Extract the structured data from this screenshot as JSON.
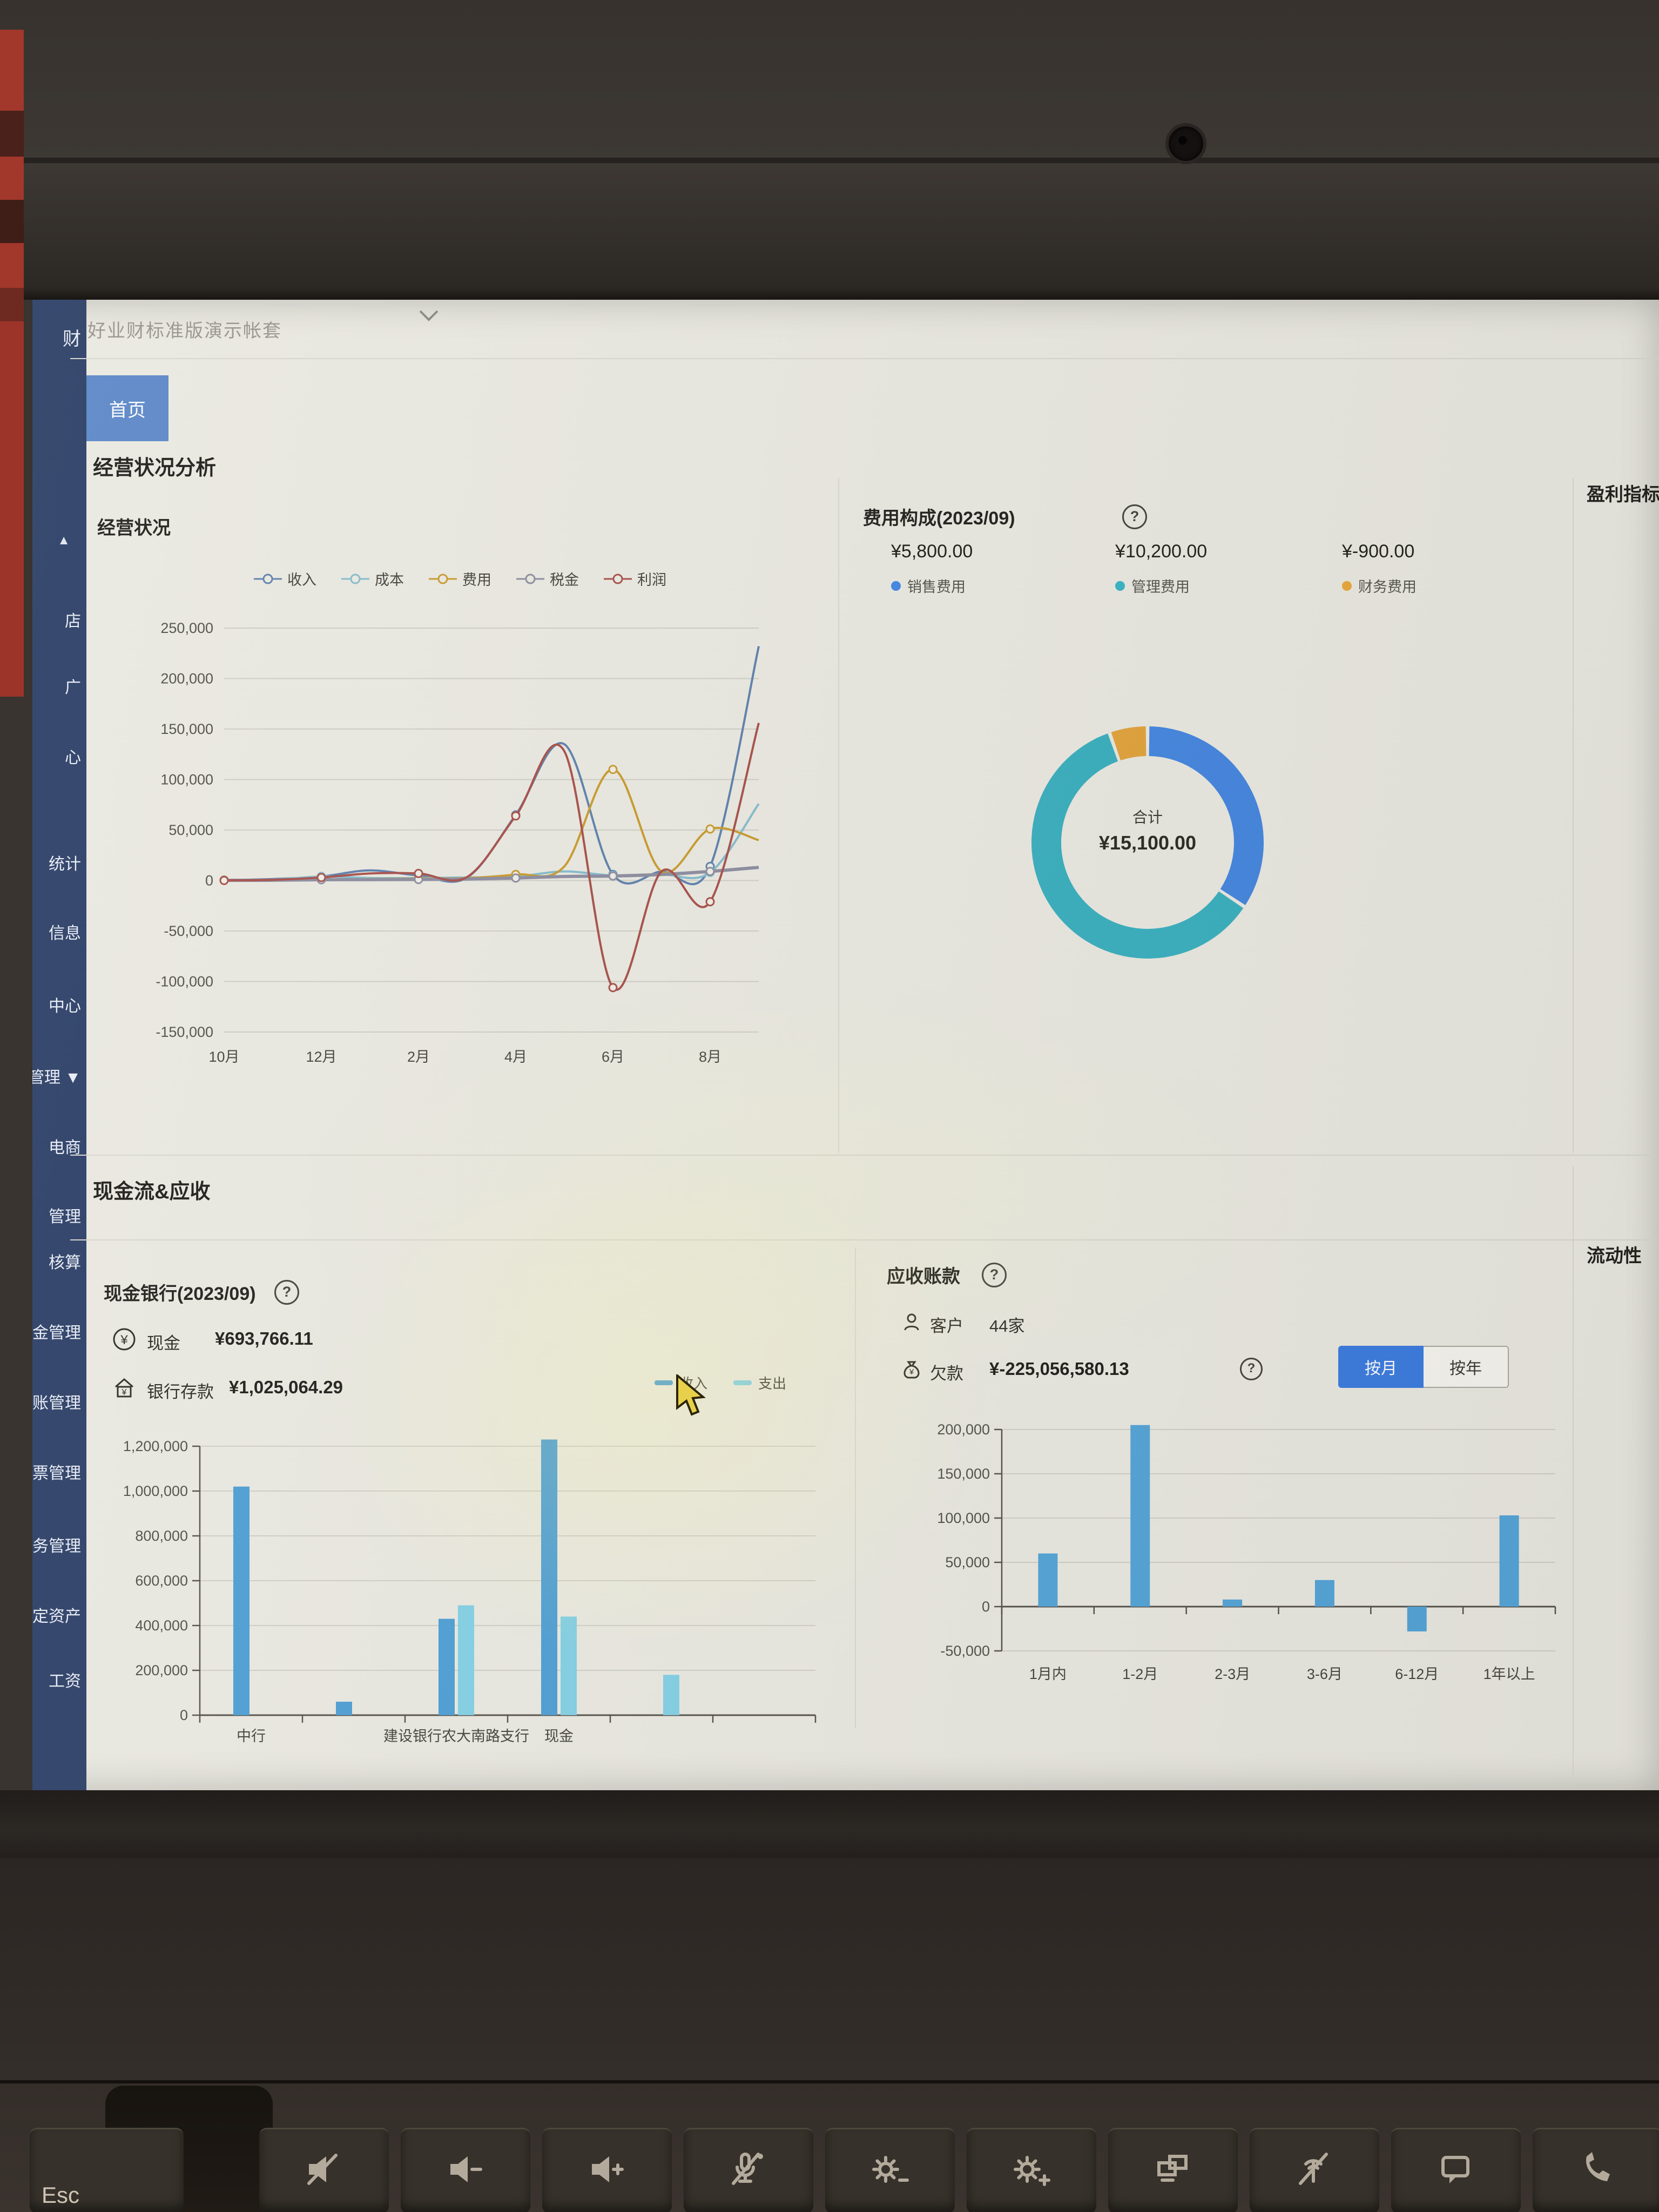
{
  "device": {
    "type": "laptop-photo",
    "keyboard_keys": [
      "Esc",
      "mute",
      "volume-down",
      "volume-up",
      "mic-mute",
      "brightness-down",
      "brightness-up",
      "display-toggle",
      "wireless-off",
      "message",
      "phone"
    ]
  },
  "header": {
    "account_name": "好业财标准版演示帐套",
    "home_tab": "首页"
  },
  "sidebar": {
    "logo_fragment": "财",
    "collapse_icon": "▲",
    "dropdown_index": 6,
    "items": [
      "店",
      "广",
      "心",
      "统计",
      "信息",
      "中心",
      "管理",
      "电商",
      "管理",
      "核算",
      "金管理",
      "账管理",
      "票管理",
      "税务管理",
      "固定资产",
      "工资"
    ]
  },
  "sections": {
    "analysis_title": "经营状况分析",
    "cashflow_title": "现金流&应收"
  },
  "expense_panel": {
    "help_icon": "?"
  },
  "cash_panel": {
    "cash_label": "现金",
    "cash_value": "¥693,766.11",
    "bank_label": "银行存款",
    "bank_value": "¥1,025,064.29"
  },
  "receivables_panel": {
    "customers_label": "客户",
    "customers_value": "44家",
    "debt_label": "欠款",
    "debt_value": "¥-225,056,580.13",
    "toggle_month": "按月",
    "toggle_year": "按年"
  },
  "stubs": {
    "profit": "盈利指标",
    "liquidity": "流动性"
  },
  "chart_data": [
    {
      "id": "operating_status",
      "type": "line",
      "title": "经营状况",
      "categories": [
        "10月",
        "11月",
        "12月",
        "1月",
        "2月",
        "3月",
        "4月",
        "5月",
        "6月",
        "7月",
        "8月",
        "9月"
      ],
      "label_every": 2,
      "ylim": [
        -150000,
        250000
      ],
      "y_step": 50000,
      "y_ticks": [
        "250,000",
        "200,000",
        "150,000",
        "100,000",
        "50,000",
        "0",
        "-50,000",
        "-100,000",
        "-150,000"
      ],
      "grid": true,
      "legend_position": "top",
      "series": [
        {
          "name": "收入",
          "color": "#5e81ad",
          "values": [
            500,
            1500,
            4000,
            10000,
            5000,
            3000,
            65000,
            135000,
            6000,
            9000,
            14000,
            232000
          ]
        },
        {
          "name": "成本",
          "color": "#85bccd",
          "values": [
            300,
            800,
            4000,
            2500,
            2500,
            3000,
            4000,
            9000,
            5000,
            6000,
            8000,
            76000
          ]
        },
        {
          "name": "费用",
          "color": "#c99b2e",
          "values": [
            400,
            600,
            1200,
            1500,
            2000,
            2500,
            6000,
            14000,
            110000,
            9000,
            51000,
            40000
          ]
        },
        {
          "name": "税金",
          "color": "#8d8da0",
          "width": 6,
          "values": [
            200,
            300,
            800,
            900,
            1000,
            1500,
            2500,
            4000,
            4500,
            6000,
            9000,
            13000
          ]
        },
        {
          "name": "利润",
          "color": "#a8504a",
          "values": [
            100,
            700,
            3000,
            7000,
            7000,
            3500,
            64000,
            128000,
            -106000,
            9000,
            -21000,
            156000
          ]
        }
      ]
    },
    {
      "id": "expense_breakdown",
      "type": "pie",
      "title": "费用构成(2023/09)",
      "center_label": "合计",
      "center_value": "¥15,100.00",
      "slices": [
        {
          "name": "销售费用",
          "value": 5800,
          "display": "¥5,800.00",
          "color": "#4687e0"
        },
        {
          "name": "管理费用",
          "value": 10200,
          "display": "¥10,200.00",
          "color": "#3bb0bf"
        },
        {
          "name": "财务费用",
          "value": -900,
          "display": "¥-900.00",
          "color": "#e2a33c"
        }
      ]
    },
    {
      "id": "cash_bank",
      "type": "bar",
      "title": "现金银行(2023/09)",
      "categories": [
        "中行",
        "",
        "建设银行农大南路支行",
        "现金",
        "",
        ""
      ],
      "ylim": [
        0,
        1300000
      ],
      "y_step": 200000,
      "y_ticks": [
        "1,200,000",
        "1,000,000",
        "800,000",
        "600,000",
        "400,000",
        "200,000",
        "0"
      ],
      "series": [
        {
          "name": "收入",
          "color": "#4f9fd4",
          "values": [
            1020000,
            60000,
            430000,
            1230000,
            null,
            null
          ]
        },
        {
          "name": "支出",
          "color": "#84d0e4",
          "values": [
            null,
            null,
            490000,
            440000,
            180000,
            null
          ]
        }
      ]
    },
    {
      "id": "receivables_aging",
      "type": "bar",
      "title": "应收账款",
      "categories": [
        "1月内",
        "1-2月",
        "2-3月",
        "3-6月",
        "6-12月",
        "1年以上"
      ],
      "ylim": [
        -50000,
        200000
      ],
      "y_step": 50000,
      "y_ticks": [
        "200,000",
        "150,000",
        "100,000",
        "50,000",
        "0",
        "-50,000"
      ],
      "series": [
        {
          "name": "欠款",
          "color": "#55a5d8",
          "values": [
            60000,
            205000,
            8000,
            30000,
            -28000,
            103000
          ]
        }
      ]
    }
  ]
}
